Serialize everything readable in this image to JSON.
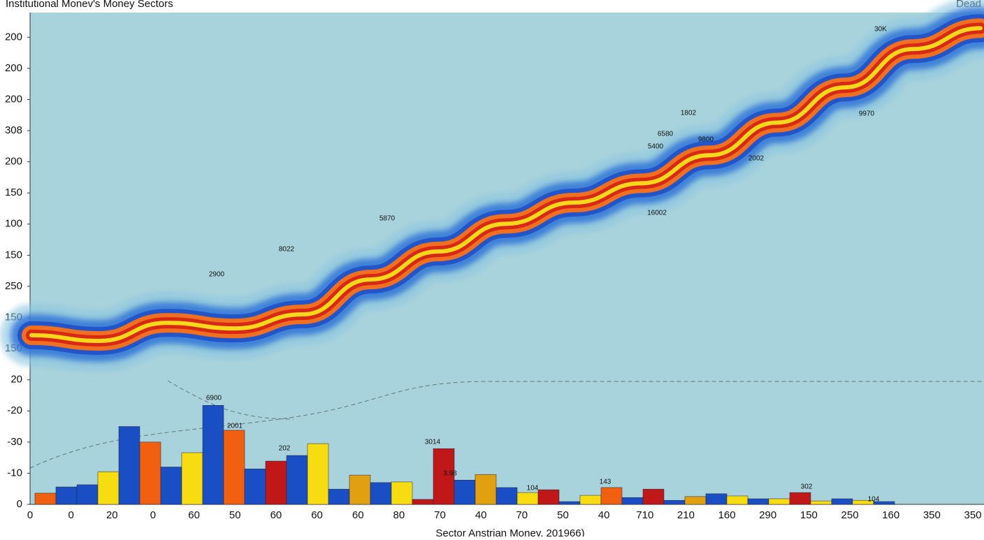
{
  "chart_data": {
    "type": "bar_band",
    "title": "Institutional Monev's Money Sectors",
    "corner_label": "Dead",
    "x_label": "Sector Anstrian Money, 201966)",
    "xtick_labels": [
      "0",
      "0",
      "20",
      "0",
      "60",
      "50",
      "60",
      "60",
      "60",
      "80",
      "70",
      "40",
      "70",
      "50",
      "40",
      "710",
      "210",
      "160",
      "290",
      "150",
      "250",
      "160",
      "350",
      "350"
    ],
    "ylim": [
      0,
      15.5
    ],
    "yticks": [
      {
        "value": 0,
        "label": "0"
      },
      {
        "value": 1,
        "label": "-10"
      },
      {
        "value": 2,
        "label": "-30"
      },
      {
        "value": 3,
        "label": "-20"
      },
      {
        "value": 4,
        "label": "20"
      },
      {
        "value": 5,
        "label": "150"
      },
      {
        "value": 6,
        "label": "150"
      },
      {
        "value": 7,
        "label": "250"
      },
      {
        "value": 8,
        "label": "150"
      },
      {
        "value": 9,
        "label": "100"
      },
      {
        "value": 10,
        "label": "150"
      },
      {
        "value": 11,
        "label": "200"
      },
      {
        "value": 12,
        "label": "308"
      },
      {
        "value": 13,
        "label": "200"
      },
      {
        "value": 14,
        "label": "200"
      },
      {
        "value": 15,
        "label": "200"
      }
    ],
    "bars": {
      "values": [
        0.36,
        0.56,
        0.63,
        1.05,
        2.5,
        2.0,
        1.2,
        1.66,
        3.18,
        2.38,
        1.14,
        1.39,
        1.57,
        1.95,
        0.49,
        0.94,
        0.7,
        0.72,
        0.16,
        1.79,
        0.78,
        0.96,
        0.54,
        0.38,
        0.47,
        0.09,
        0.29,
        0.54,
        0.22,
        0.49,
        0.13,
        0.25,
        0.34,
        0.27,
        0.18,
        0.18,
        0.38,
        0.11,
        0.18,
        0.13,
        0.09
      ],
      "colors": [
        "#f06010",
        "#1a4fc4",
        "#1a4fc4",
        "#f6dc10",
        "#1a4fc4",
        "#f06010",
        "#1a4fc4",
        "#f6dc10",
        "#1a4fc4",
        "#f06010",
        "#1a4fc4",
        "#c01818",
        "#1a4fc4",
        "#f6dc10",
        "#1a4fc4",
        "#e0a010",
        "#1a4fc4",
        "#f6dc10",
        "#c01818",
        "#c01818",
        "#1a4fc4",
        "#e0a010",
        "#1a4fc4",
        "#f6dc10",
        "#c01818",
        "#1a4fc4",
        "#f6dc10",
        "#f06010",
        "#1a4fc4",
        "#c01818",
        "#1a4fc4",
        "#e0a010",
        "#1a4fc4",
        "#f6dc10",
        "#1a4fc4",
        "#f6dc10",
        "#c01818",
        "#f6dc10",
        "#1a4fc4",
        "#f6dc10",
        "#1a4fc4"
      ]
    },
    "band": {
      "values": [
        5.43,
        5.25,
        5.83,
        5.65,
        6.1,
        7.22,
        8.12,
        9.01,
        9.69,
        10.31,
        11.21,
        12.26,
        13.39,
        14.62,
        15.29
      ]
    },
    "annotations": [
      "6900",
      "2001",
      "202",
      "3014",
      "3.98",
      "104",
      "143",
      "302",
      "104",
      "1802",
      "6580",
      "5400",
      "9800",
      "2002",
      "8022",
      "5870",
      "2900",
      "16002",
      "9970",
      "30K"
    ]
  }
}
